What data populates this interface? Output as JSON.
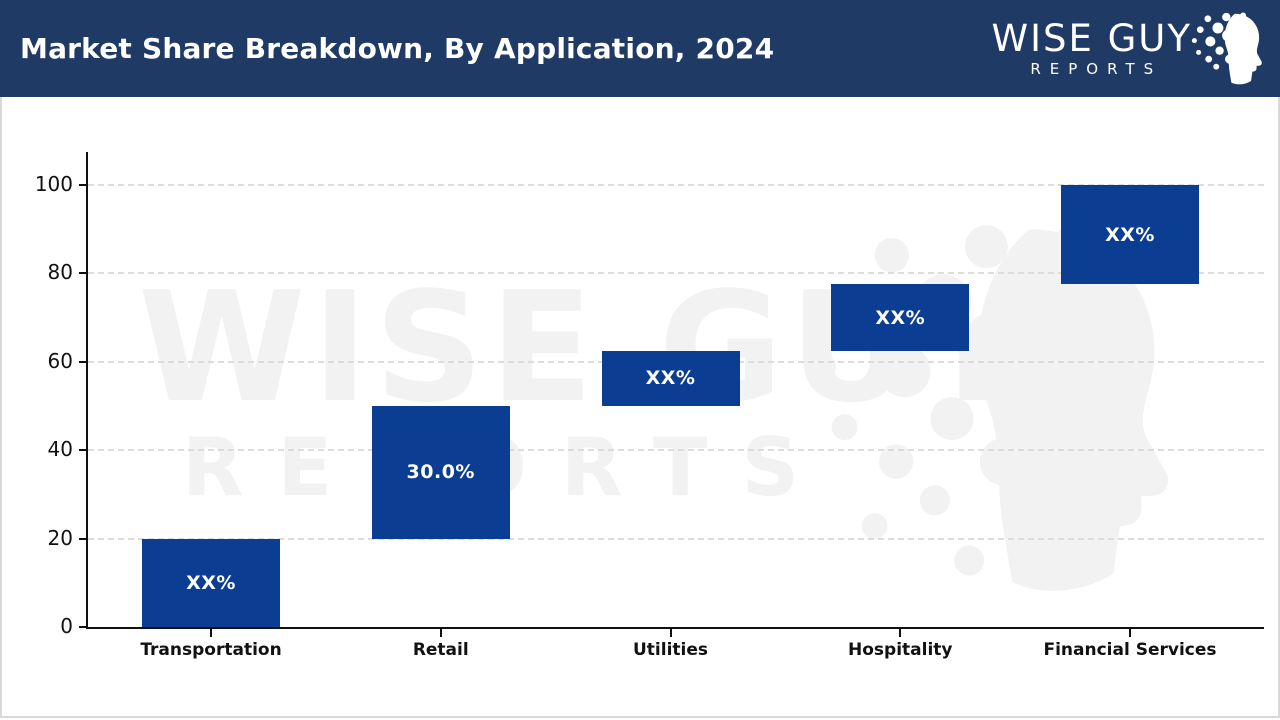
{
  "header": {
    "title": "Market Share Breakdown, By Application, 2024",
    "logo": {
      "line1": "WISE GUY",
      "line2": "REPORTS"
    }
  },
  "watermark": {
    "line1": "WISE GUY",
    "line2": "REPORTS"
  },
  "colors": {
    "header_bg": "#203a66",
    "bar_blue": "#0b3e92",
    "axis": "#111111",
    "gridline": "#dcdcdc",
    "frame_border": "#d9d9d9",
    "watermark": "#f2f2f2",
    "bar_label": "#ffffff"
  },
  "chart_data": {
    "type": "bar",
    "subtype": "floating-waterfall",
    "title": "Market Share Breakdown, By Application, 2024",
    "categories": [
      "Transportation",
      "Retail",
      "Utilities",
      "Hospitality",
      "Financial Services"
    ],
    "series": [
      {
        "name": "Market Share (%)",
        "segments": [
          {
            "category": "Transportation",
            "start": 0,
            "end": 20,
            "value": 20,
            "label": "XX%"
          },
          {
            "category": "Retail",
            "start": 20,
            "end": 50,
            "value": 30,
            "label": "30.0%"
          },
          {
            "category": "Utilities",
            "start": 50,
            "end": 62.5,
            "value": 12.5,
            "label": "XX%"
          },
          {
            "category": "Hospitality",
            "start": 62.5,
            "end": 77.5,
            "value": 15,
            "label": "XX%"
          },
          {
            "category": "Financial Services",
            "start": 77.5,
            "end": 100,
            "value": 22.5,
            "label": "XX%"
          }
        ]
      }
    ],
    "yticks": [
      0,
      20,
      40,
      60,
      80,
      100
    ],
    "ylim": [
      0,
      107.5
    ],
    "xlabel": "",
    "ylabel": "",
    "grid": true,
    "grid_style": "dashed",
    "legend": false
  }
}
